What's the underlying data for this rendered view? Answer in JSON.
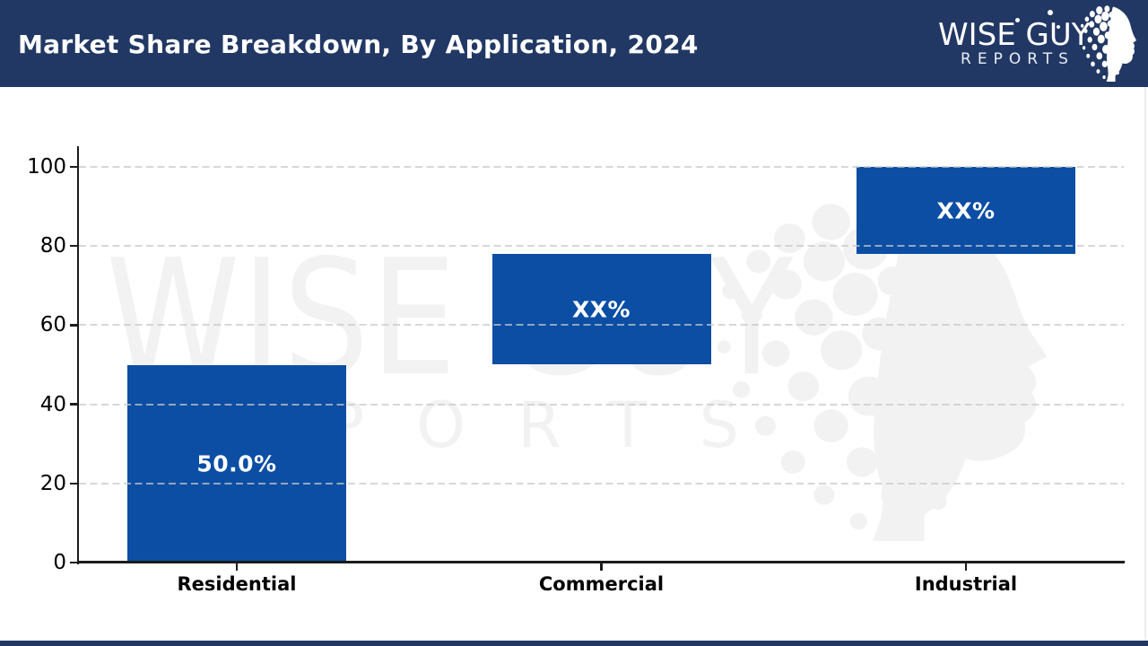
{
  "header": {
    "title": "Market Share Breakdown, By Application, 2024",
    "logo": {
      "wordmark": "WISE GUY",
      "subtext": "REPORTS"
    }
  },
  "watermark": {
    "wordmark": "WISE GUY",
    "subtext": "REPORTS"
  },
  "chart_data": {
    "type": "bar",
    "variant": "floating-segment-breakdown",
    "title": "Market Share Breakdown, By Application, 2024",
    "categories": [
      "Residential",
      "Commercial",
      "Industrial"
    ],
    "series": [
      {
        "name": "Residential",
        "range": [
          0,
          50
        ],
        "value_label": "50.0%"
      },
      {
        "name": "Commercial",
        "range": [
          50,
          78
        ],
        "value_label": "XX%"
      },
      {
        "name": "Industrial",
        "range": [
          78,
          100
        ],
        "value_label": "XX%"
      }
    ],
    "yticks": [
      0,
      20,
      40,
      60,
      80,
      100
    ],
    "ylim": [
      0,
      105
    ],
    "xlabel": "",
    "ylabel": "",
    "grid": "horizontal-dashed",
    "legend": "none",
    "colors": {
      "bar": "#0B4EA4",
      "bar_label": "#FFFFFF",
      "grid": "#D8D8D8",
      "axis": "#1C1C1C",
      "header_bg": "#223864",
      "watermark": "#F2F2F2"
    }
  }
}
